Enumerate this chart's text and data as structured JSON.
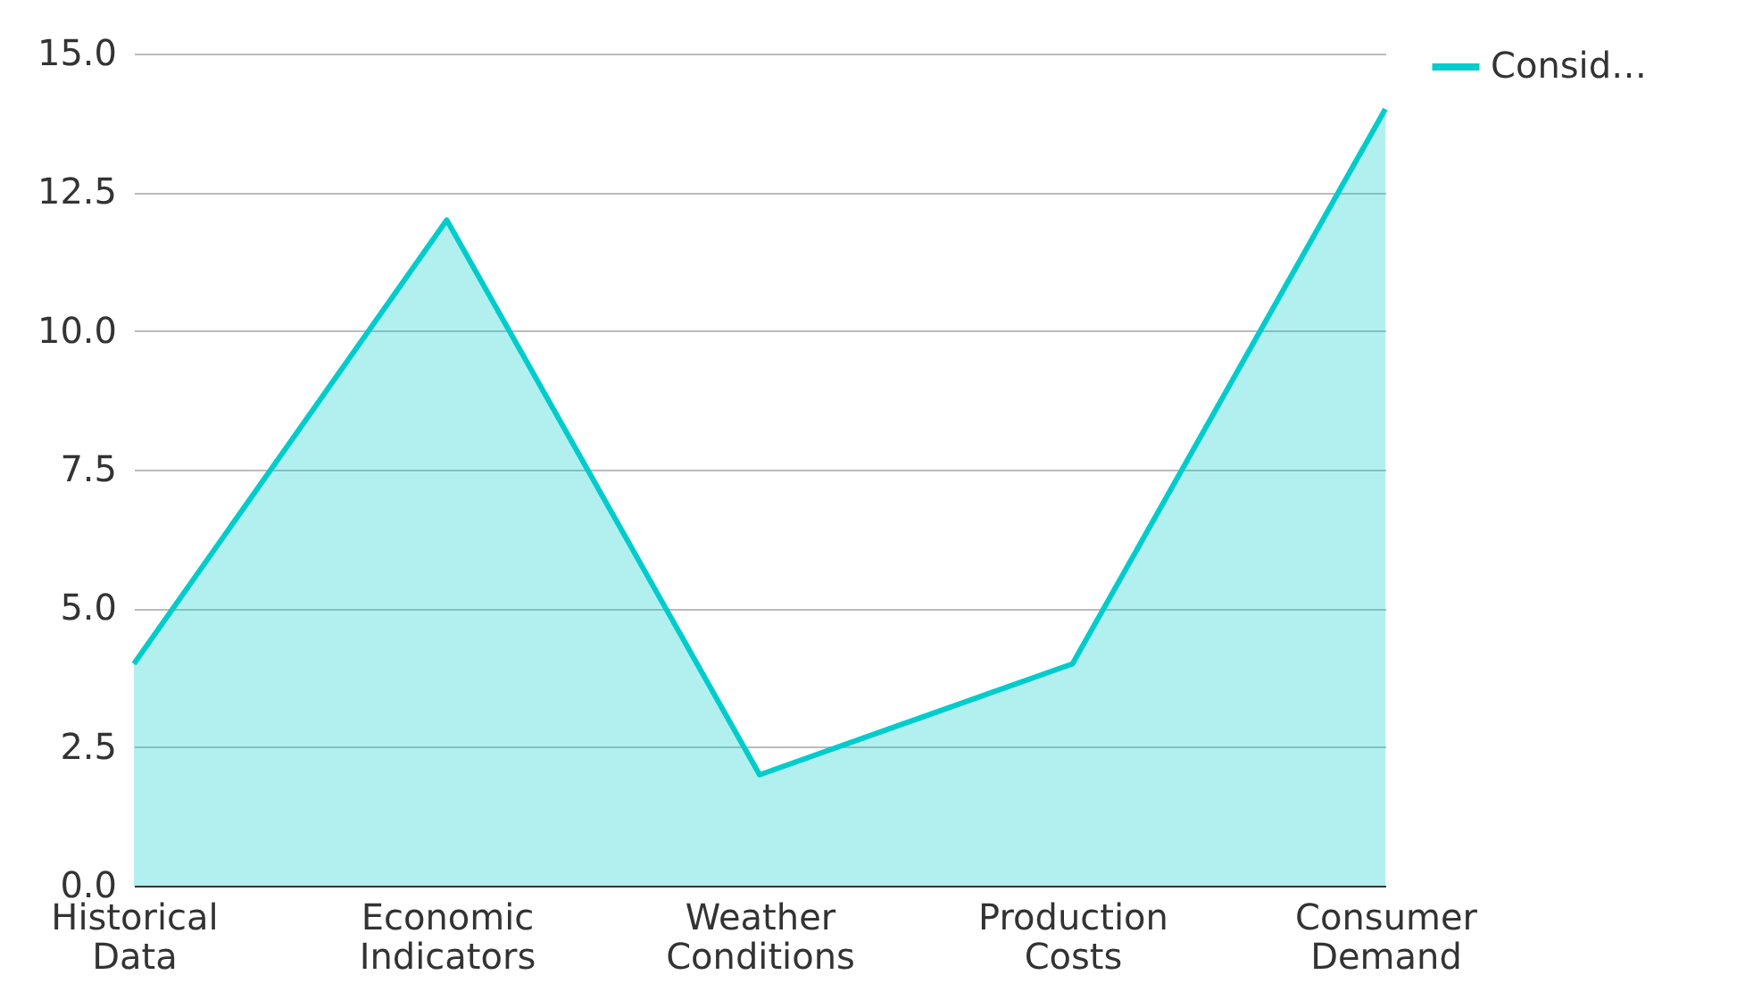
{
  "chart_data": {
    "type": "area",
    "categories": [
      "Historical Data",
      "Economic Indicators",
      "Weather Conditions",
      "Production Costs",
      "Consumer Demand"
    ],
    "series": [
      {
        "name": "Consid…",
        "color": "#00cccc",
        "values": [
          4,
          12,
          2,
          4,
          14
        ]
      }
    ],
    "ylim": [
      0,
      15
    ],
    "yticks": [
      {
        "value": 0,
        "label": "0.0"
      },
      {
        "value": 2.5,
        "label": "2.5"
      },
      {
        "value": 5,
        "label": "5.0"
      },
      {
        "value": 7.5,
        "label": "7.5"
      },
      {
        "value": 10,
        "label": "10.0"
      },
      {
        "value": 12.5,
        "label": "12.5"
      },
      {
        "value": 15,
        "label": "15.0"
      }
    ],
    "grid": "y",
    "legend": "top right"
  }
}
